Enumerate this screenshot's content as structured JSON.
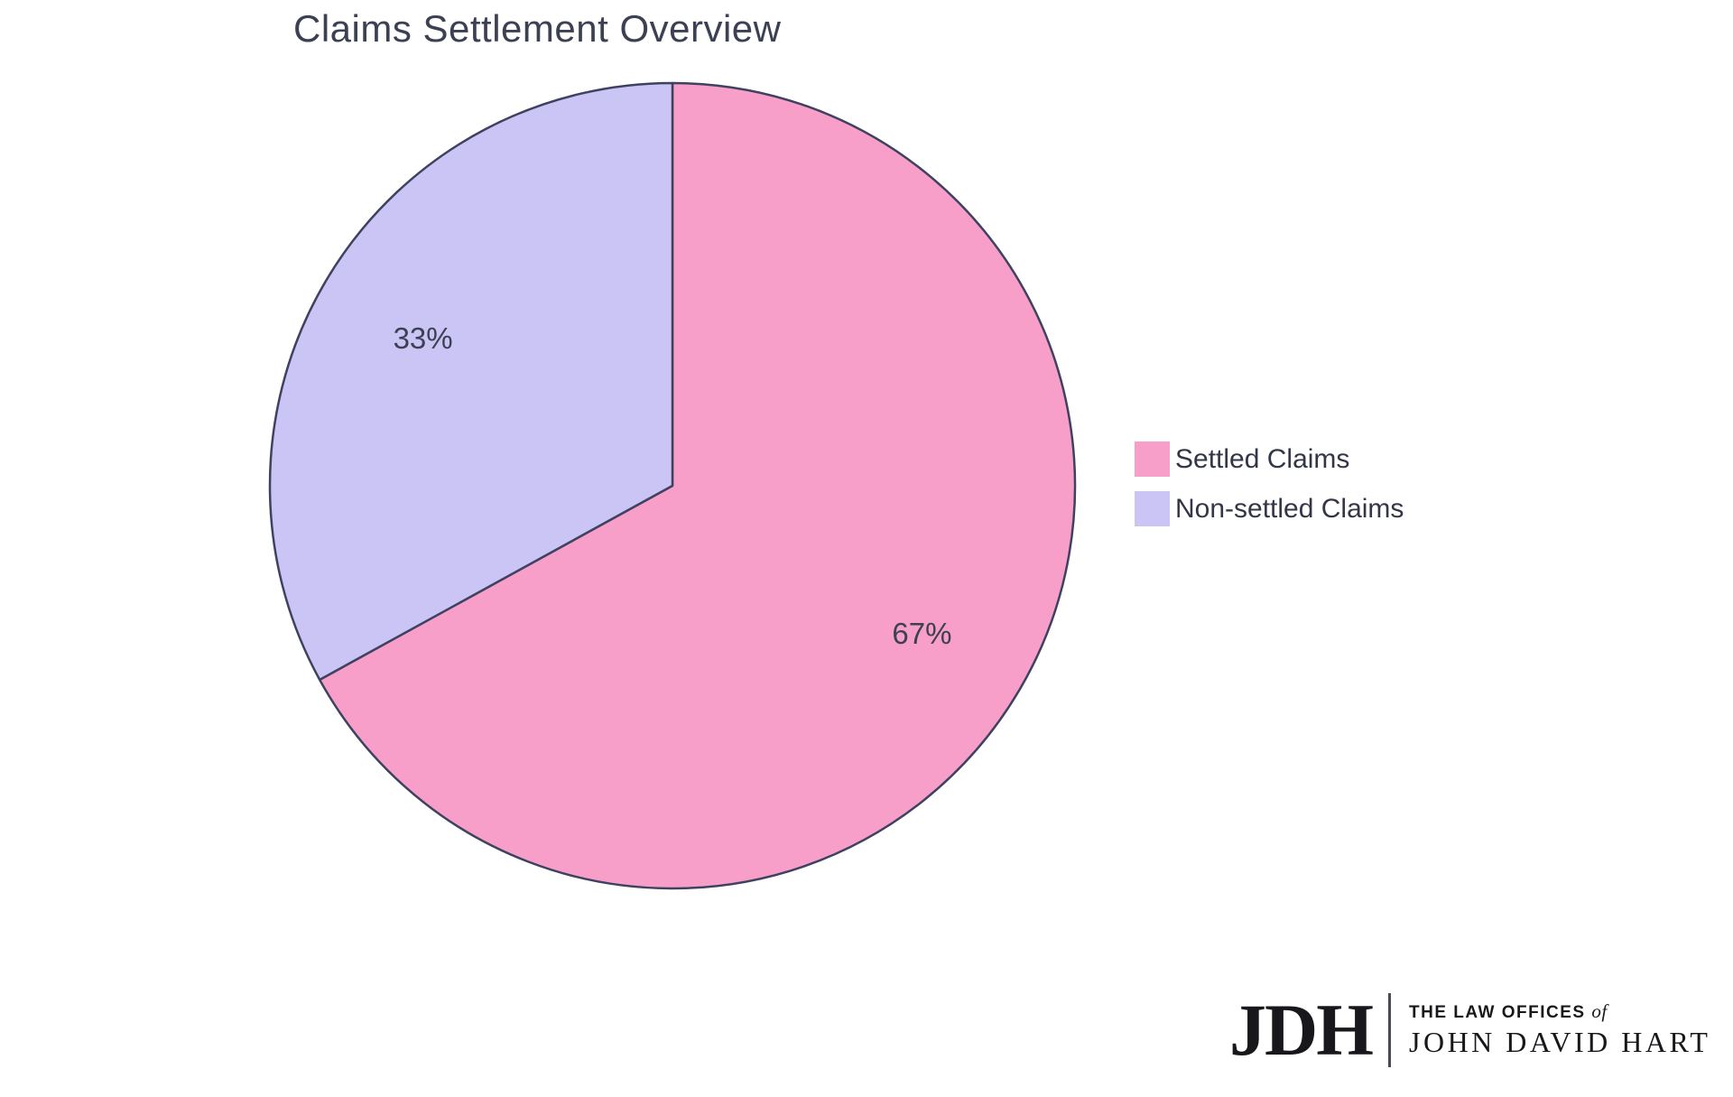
{
  "chart_data": {
    "type": "pie",
    "title": "Claims Settlement Overview",
    "labels": [
      "Settled Claims",
      "Non-settled Claims"
    ],
    "values": [
      67,
      33
    ],
    "value_labels": [
      "67%",
      "33%"
    ],
    "colors": [
      "#F89FC9",
      "#CBC5F6"
    ],
    "stroke_color": "#3e4260",
    "start_angle": "top",
    "direction": "clockwise",
    "legend_position": "right",
    "label_position": "inside"
  },
  "legend": {
    "items": [
      {
        "label": "Settled Claims",
        "color": "#F89FC9"
      },
      {
        "label": "Non-settled Claims",
        "color": "#CBC5F6"
      }
    ]
  },
  "branding": {
    "monogram": "JDH",
    "tagline_prefix": "THE LAW OFFICES",
    "tagline_of": "of",
    "name": "JOHN DAVID HART"
  }
}
